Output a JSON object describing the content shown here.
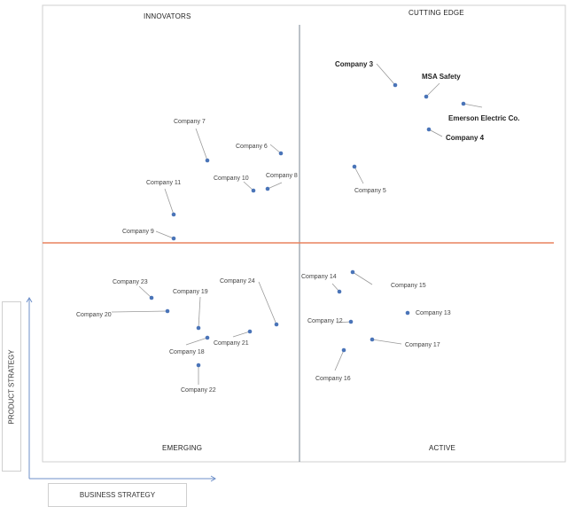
{
  "quadrants": {
    "top_left": "INNOVATORS",
    "top_right": "CUTTING EDGE",
    "bottom_left": "EMERGING",
    "bottom_right": "ACTIVE"
  },
  "axes": {
    "x_label": "BUSINESS STRATEGY",
    "y_label": "PRODUCT STRATEGY"
  },
  "colors": {
    "point": "#4a74b8",
    "leader": "#9a9a9a",
    "divider_h": "#e8825e",
    "divider_v": "#7a8591",
    "frame": "#cfcfcf",
    "axis_arrow": "#6d8fc9"
  },
  "companies": [
    {
      "name": "Company 3",
      "bold": true
    },
    {
      "name": "MSA Safety",
      "bold": true
    },
    {
      "name": "Emerson Electric Co.",
      "bold": true
    },
    {
      "name": "Company 4",
      "bold": true
    },
    {
      "name": "Company 5",
      "bold": false
    },
    {
      "name": "Company 7",
      "bold": false
    },
    {
      "name": "Company 6",
      "bold": false
    },
    {
      "name": "Company 10",
      "bold": false
    },
    {
      "name": "Company 8",
      "bold": false
    },
    {
      "name": "Company 11",
      "bold": false
    },
    {
      "name": "Company 9",
      "bold": false
    },
    {
      "name": "Company 23",
      "bold": false
    },
    {
      "name": "Company 19",
      "bold": false
    },
    {
      "name": "Company 24",
      "bold": false
    },
    {
      "name": "Company 20",
      "bold": false
    },
    {
      "name": "Company 18",
      "bold": false
    },
    {
      "name": "Company 21",
      "bold": false
    },
    {
      "name": "Company 22",
      "bold": false
    },
    {
      "name": "Company 14",
      "bold": false
    },
    {
      "name": "Company 15",
      "bold": false
    },
    {
      "name": "Company 12",
      "bold": false
    },
    {
      "name": "Company 13",
      "bold": false
    },
    {
      "name": "Company 17",
      "bold": false
    },
    {
      "name": "Company 16",
      "bold": false
    }
  ]
}
